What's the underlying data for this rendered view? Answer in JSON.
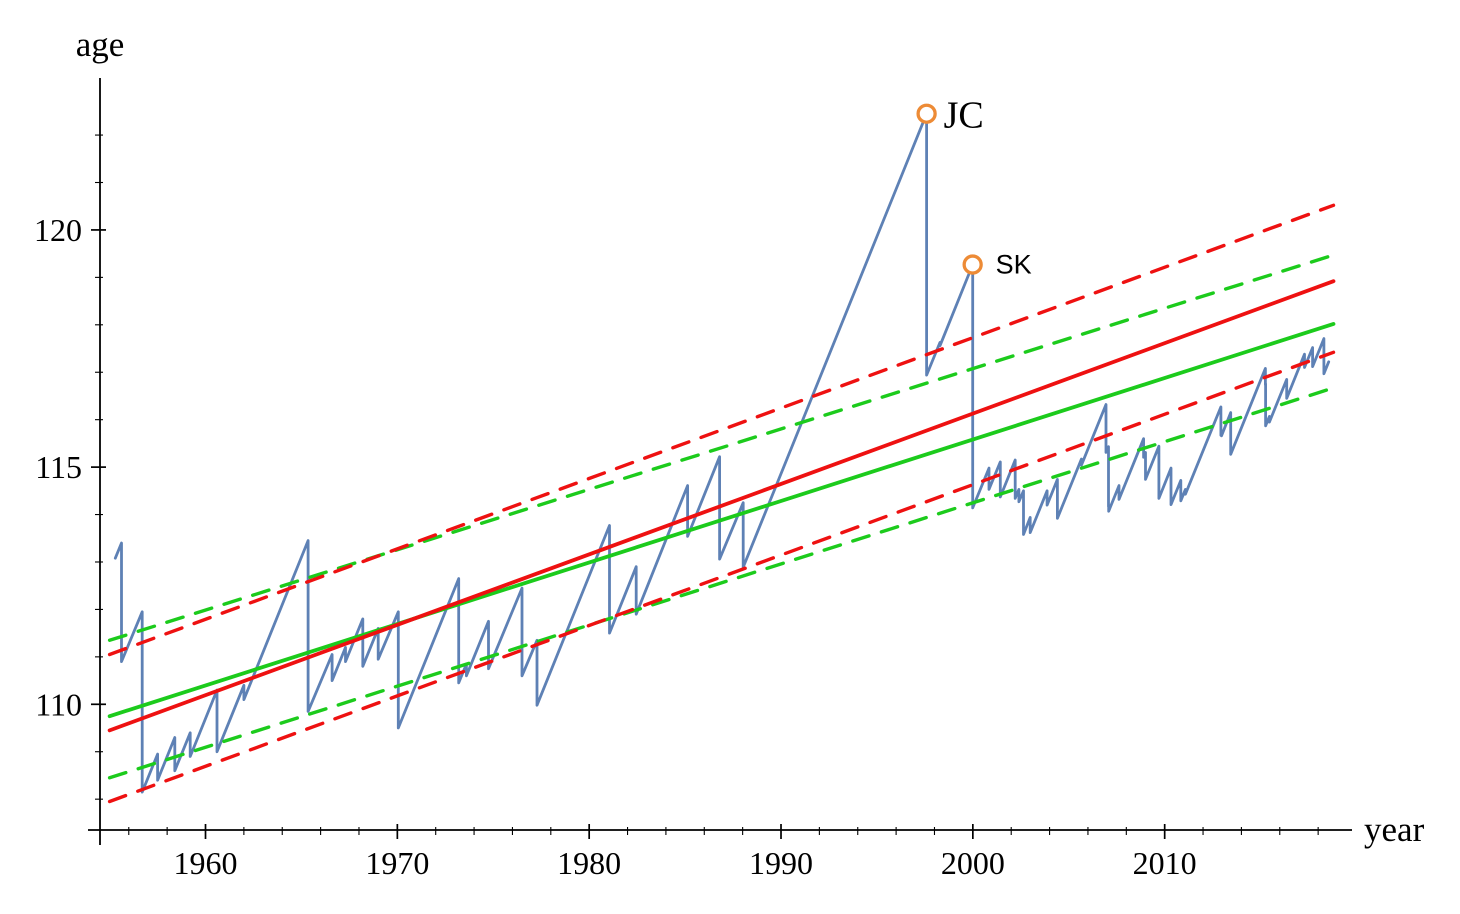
{
  "figure": {
    "background": "#ffffff",
    "axis_color": "#000000"
  },
  "chart_data": {
    "type": "line",
    "title": "",
    "xlabel": "year",
    "ylabel": "age",
    "xlim": [
      1954.5,
      2019.4
    ],
    "ylim": [
      107.35,
      122.95
    ],
    "grid": false,
    "legend": "none",
    "x_tick_values": [
      1960,
      1970,
      1980,
      1990,
      2000,
      2010
    ],
    "x_tick_labels": [
      "1960",
      "1970",
      "1980",
      "1990",
      "2000",
      "2010"
    ],
    "y_tick_values": [
      110,
      115,
      120
    ],
    "y_tick_labels": [
      "110",
      "115",
      "120"
    ],
    "x_minor_step": 2,
    "y_minor_step": 1,
    "series": [
      {
        "name": "oldest-living-person-age",
        "role": "data",
        "color": "#5E81B5",
        "width": 2.8,
        "dash": null,
        "points": [
          [
            1955.3,
            113.08
          ],
          [
            1955.62,
            113.4
          ],
          [
            1955.62,
            110.9
          ],
          [
            1956.7,
            111.95
          ],
          [
            1956.7,
            108.15
          ],
          [
            1957.5,
            108.95
          ],
          [
            1957.5,
            108.4
          ],
          [
            1958.4,
            109.3
          ],
          [
            1958.4,
            108.6
          ],
          [
            1959.2,
            109.4
          ],
          [
            1959.2,
            108.9
          ],
          [
            1960.6,
            110.3
          ],
          [
            1960.6,
            109.0
          ],
          [
            1962.0,
            110.4
          ],
          [
            1962.0,
            110.1
          ],
          [
            1965.35,
            113.45
          ],
          [
            1965.35,
            109.85
          ],
          [
            1966.6,
            111.05
          ],
          [
            1966.6,
            110.5
          ],
          [
            1967.3,
            111.2
          ],
          [
            1967.3,
            110.9
          ],
          [
            1968.2,
            111.8
          ],
          [
            1968.2,
            110.8
          ],
          [
            1969.0,
            111.6
          ],
          [
            1969.0,
            110.95
          ],
          [
            1970.05,
            111.95
          ],
          [
            1970.05,
            109.5
          ],
          [
            1973.2,
            112.65
          ],
          [
            1973.2,
            110.45
          ],
          [
            1973.6,
            110.85
          ],
          [
            1973.6,
            110.6
          ],
          [
            1974.75,
            111.75
          ],
          [
            1974.75,
            110.75
          ],
          [
            1976.5,
            112.45
          ],
          [
            1976.5,
            110.6
          ],
          [
            1977.28,
            111.35
          ],
          [
            1977.28,
            109.98
          ],
          [
            1981.06,
            113.77
          ],
          [
            1981.06,
            111.5
          ],
          [
            1982.45,
            112.9
          ],
          [
            1982.45,
            111.9
          ],
          [
            1985.13,
            114.61
          ],
          [
            1985.13,
            113.54
          ],
          [
            1986.8,
            115.22
          ],
          [
            1986.8,
            113.06
          ],
          [
            1988.03,
            114.25
          ],
          [
            1988.03,
            112.89
          ],
          [
            1997.59,
            122.45
          ],
          [
            1997.59,
            116.94
          ],
          [
            1998.29,
            117.63
          ],
          [
            1998.29,
            117.56
          ],
          [
            1999.99,
            119.27
          ],
          [
            1999.99,
            114.14
          ],
          [
            2000.84,
            114.98
          ],
          [
            2000.84,
            114.53
          ],
          [
            2001.43,
            115.11
          ],
          [
            2001.43,
            114.37
          ],
          [
            2002.21,
            115.15
          ],
          [
            2002.21,
            114.34
          ],
          [
            2002.4,
            114.53
          ],
          [
            2002.4,
            114.27
          ],
          [
            2002.64,
            114.5
          ],
          [
            2002.64,
            113.58
          ],
          [
            2002.99,
            113.94
          ],
          [
            2002.99,
            113.62
          ],
          [
            2003.87,
            114.5
          ],
          [
            2003.87,
            114.2
          ],
          [
            2004.41,
            114.74
          ],
          [
            2004.41,
            113.92
          ],
          [
            2005.66,
            115.17
          ],
          [
            2005.66,
            115.04
          ],
          [
            2006.94,
            116.32
          ],
          [
            2006.94,
            115.31
          ],
          [
            2007.07,
            115.43
          ],
          [
            2007.07,
            114.17
          ],
          [
            2007.08,
            114.18
          ],
          [
            2007.08,
            114.07
          ],
          [
            2007.62,
            114.61
          ],
          [
            2007.62,
            114.32
          ],
          [
            2008.9,
            115.6
          ],
          [
            2008.9,
            115.21
          ],
          [
            2009.0,
            115.31
          ],
          [
            2009.0,
            114.74
          ],
          [
            2009.7,
            115.44
          ],
          [
            2009.7,
            114.34
          ],
          [
            2010.33,
            114.98
          ],
          [
            2010.33,
            114.21
          ],
          [
            2010.84,
            114.72
          ],
          [
            2010.84,
            114.29
          ],
          [
            2011.08,
            114.53
          ],
          [
            2011.08,
            114.43
          ],
          [
            2012.93,
            116.27
          ],
          [
            2012.93,
            115.67
          ],
          [
            2012.96,
            115.7
          ],
          [
            2012.96,
            115.66
          ],
          [
            2013.44,
            116.15
          ],
          [
            2013.44,
            115.27
          ],
          [
            2015.25,
            117.08
          ],
          [
            2015.25,
            116.74
          ],
          [
            2015.26,
            116.76
          ],
          [
            2015.26,
            115.87
          ],
          [
            2015.46,
            116.07
          ],
          [
            2015.46,
            115.95
          ],
          [
            2016.36,
            116.85
          ],
          [
            2016.36,
            116.45
          ],
          [
            2017.29,
            117.38
          ],
          [
            2017.29,
            117.1
          ],
          [
            2017.71,
            117.52
          ],
          [
            2017.71,
            117.12
          ],
          [
            2018.3,
            117.71
          ],
          [
            2018.3,
            116.97
          ],
          [
            2018.55,
            117.22
          ]
        ]
      },
      {
        "name": "green-band-upper",
        "role": "trend-band",
        "color": "#1CCB1C",
        "width": 3.4,
        "dash": "17 13",
        "points": [
          [
            1955,
            111.35
          ],
          [
            2018.8,
            119.47
          ]
        ]
      },
      {
        "name": "green-band-lower",
        "role": "trend-band",
        "color": "#1CCB1C",
        "width": 3.4,
        "dash": "17 13",
        "points": [
          [
            1955,
            108.45
          ],
          [
            2018.8,
            116.67
          ]
        ]
      },
      {
        "name": "green-fit",
        "role": "trend",
        "color": "#1CCB1C",
        "width": 3.8,
        "dash": null,
        "points": [
          [
            1955,
            109.75
          ],
          [
            2018.8,
            118.02
          ]
        ]
      },
      {
        "name": "red-band-upper",
        "role": "trend-band",
        "color": "#EE1111",
        "width": 3.4,
        "dash": "17 13",
        "points": [
          [
            1955,
            111.05
          ],
          [
            2018.8,
            120.52
          ]
        ]
      },
      {
        "name": "red-band-lower",
        "role": "trend-band",
        "color": "#EE1111",
        "width": 3.4,
        "dash": "17 13",
        "points": [
          [
            1955,
            107.95
          ],
          [
            2018.8,
            117.42
          ]
        ]
      },
      {
        "name": "red-fit",
        "role": "trend",
        "color": "#EE1111",
        "width": 3.8,
        "dash": null,
        "points": [
          [
            1955,
            109.45
          ],
          [
            2018.8,
            118.92
          ]
        ]
      }
    ],
    "annotations": [
      {
        "label": "JC",
        "x": 1997.59,
        "y": 122.45,
        "marker": "open-circle",
        "marker_color": "#ED8B36"
      },
      {
        "label": "SK",
        "x": 1999.99,
        "y": 119.27,
        "marker": "open-circle",
        "marker_color": "#ED8B36"
      }
    ]
  }
}
